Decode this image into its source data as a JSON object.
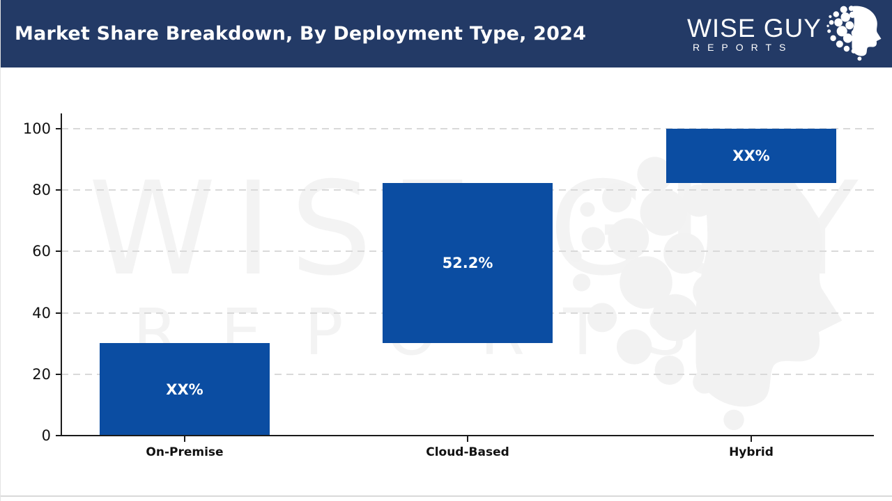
{
  "page": {
    "background": "#ffffff",
    "frame_border_color": "#d9d9d9"
  },
  "header": {
    "title": "Market Share Breakdown, By Deployment Type, 2024",
    "bg_color": "#233a66",
    "text_color": "#ffffff",
    "logo": {
      "line1": "WISE GUY",
      "line2": "REPORTS",
      "face_icon": "dotted-head-profile-icon"
    }
  },
  "watermark": {
    "line1": "WISE GUY",
    "line2": "REPORTS",
    "color": "#f3f3f3"
  },
  "chart_data": {
    "type": "bar",
    "variant": "floating-segment-waterfall",
    "title": "Market Share Breakdown, By Deployment Type, 2024",
    "categories": [
      "On-Premise",
      "Cloud-Based",
      "Hybrid"
    ],
    "segments": [
      {
        "category": "On-Premise",
        "start": 0,
        "end": 30.2,
        "label": "XX%"
      },
      {
        "category": "Cloud-Based",
        "start": 30.2,
        "end": 82.4,
        "label": "52.2%"
      },
      {
        "category": "Hybrid",
        "start": 82.4,
        "end": 100,
        "label": "XX%"
      }
    ],
    "bar_color": "#0b4da2",
    "bar_label_color": "#ffffff",
    "xlabel": "",
    "ylabel": "",
    "yticks": [
      0,
      20,
      40,
      60,
      80,
      100
    ],
    "ylim": [
      0,
      105
    ],
    "grid": "horizontal-dashed",
    "grid_color": "#d9d9d9",
    "axis_color": "#1a1a1a",
    "legend": "none"
  }
}
